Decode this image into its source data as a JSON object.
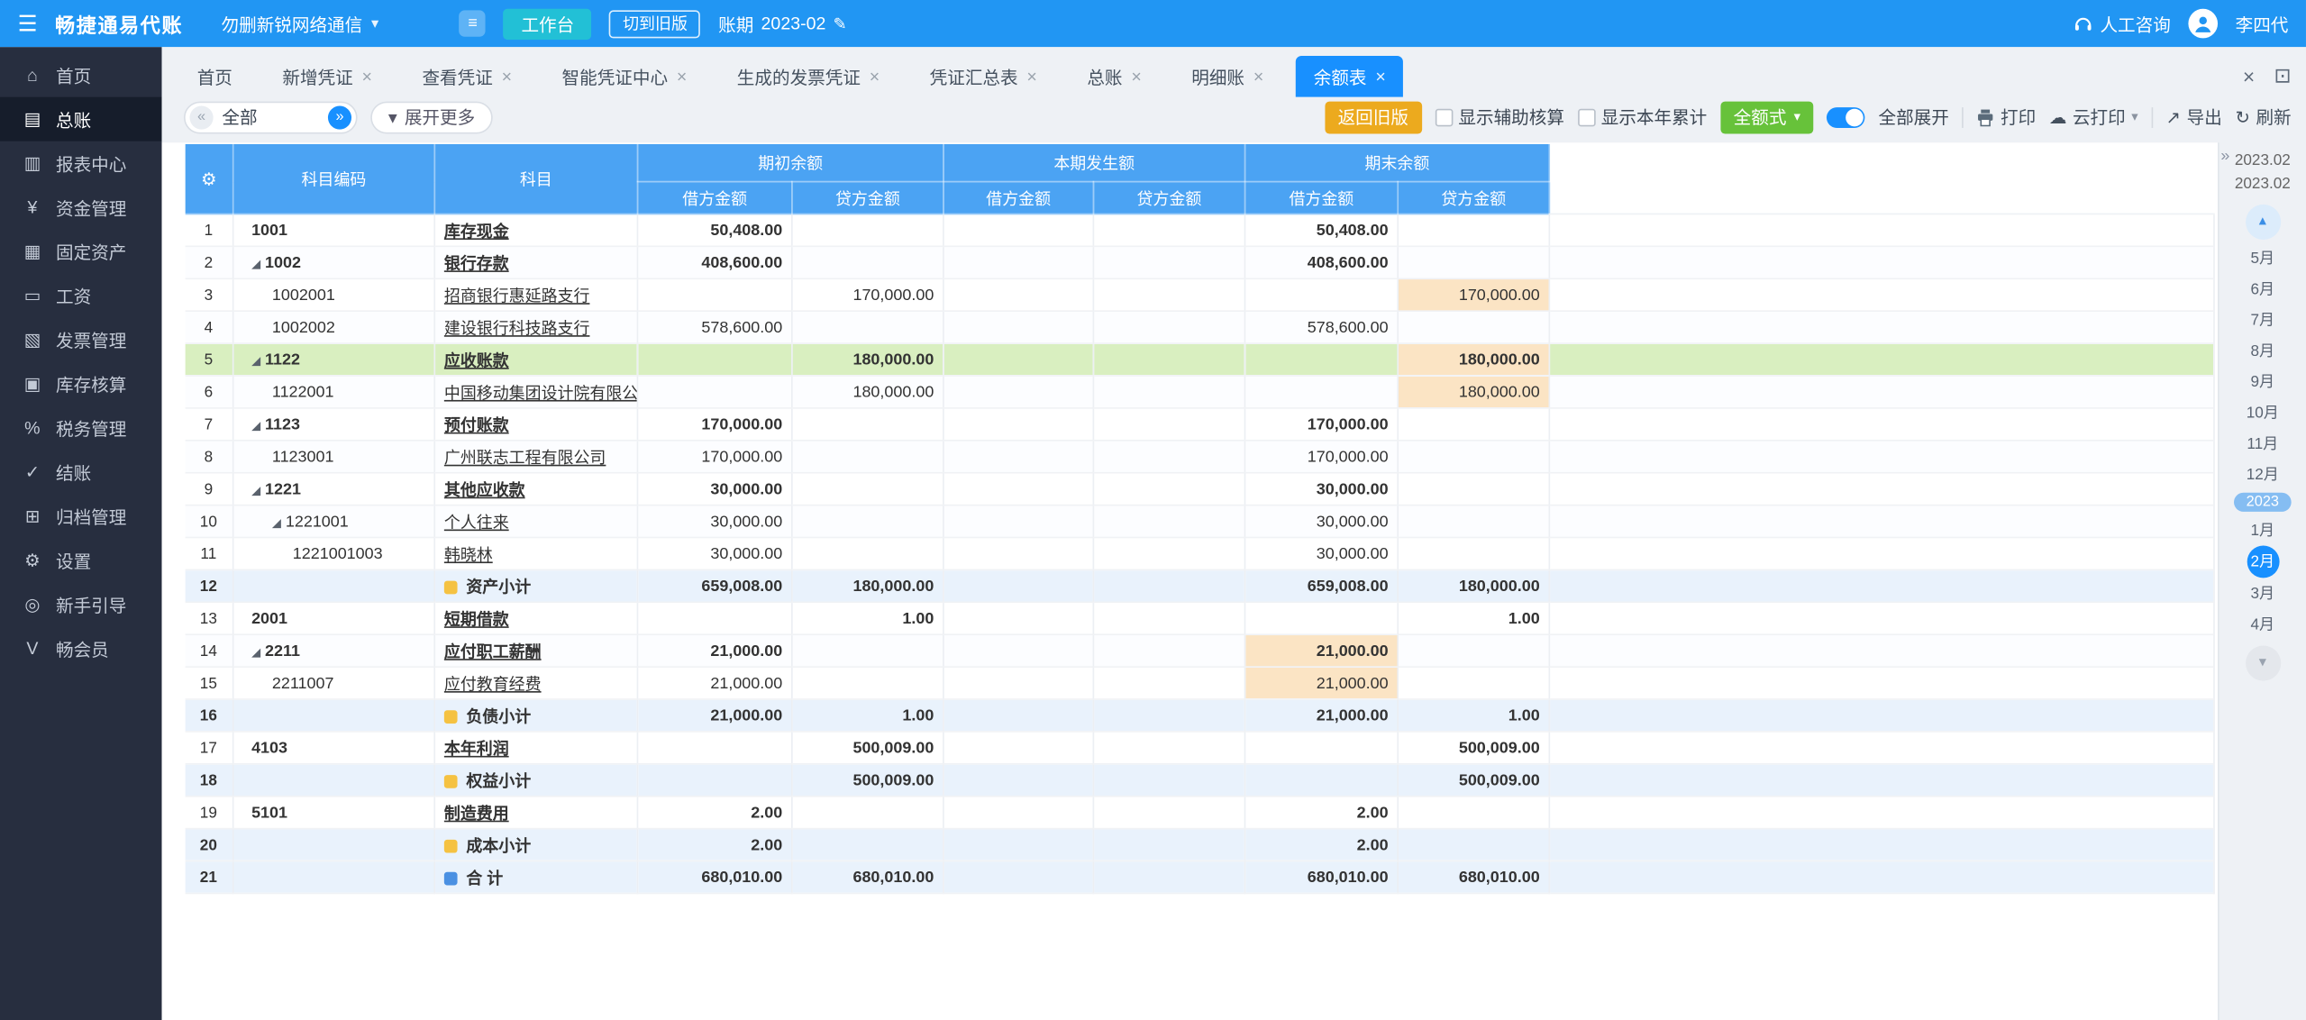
{
  "colors": {
    "topbar_blue": "#2196f3",
    "accent_blue": "#1890ff",
    "table_header_blue": "#4ba3f3",
    "green_button": "#67c23a",
    "old_version_button": "#ecaa1e",
    "workbench_button": "#22c0d6",
    "selected_row_green": "#d9efc0",
    "highlight_cell_orange": "#fbe4c4",
    "subtotal_row_blue": "#e9f2fc",
    "sidebar_dark": "#272e3f"
  },
  "icons": {
    "hamburger-icon": "☰",
    "chevron-down-icon": "▾",
    "edit-icon": "✎",
    "apps-icon": "≡",
    "home-icon": "⌂",
    "ledger-icon": "▤",
    "report-icon": "▥",
    "funds-icon": "¥",
    "assets-icon": "▦",
    "salary-icon": "▭",
    "invoice-icon": "▧",
    "inventory-icon": "▣",
    "tax-icon": "%",
    "closing-icon": "✓",
    "archive-icon": "⊞",
    "settings-icon": "⚙",
    "guide-icon": "◎",
    "member-icon": "V",
    "gear-icon": "⚙",
    "expand-triangle-icon": "◢",
    "close-icon": "×",
    "fullscreen-icon": "⊡",
    "cloud-icon": "☁",
    "export-icon": "↗",
    "refresh-icon": "↻",
    "left-circle-icon": "«",
    "right-circle-icon": "»",
    "collapse-icon": "»",
    "up-icon": "▴",
    "down-icon": "▾"
  },
  "topbar": {
    "logo": "畅捷通易代账",
    "company": "勿删新锐网络通信",
    "workbench": "工作台",
    "switch_old": "切到旧版",
    "period_label": "账期",
    "period_value": "2023-02",
    "support": "人工咨询",
    "user": "李四代"
  },
  "tabs": {
    "items": [
      {
        "label": "首页",
        "closable": false,
        "active": false
      },
      {
        "label": "新增凭证",
        "closable": true,
        "active": false
      },
      {
        "label": "查看凭证",
        "closable": true,
        "active": false
      },
      {
        "label": "智能凭证中心",
        "closable": true,
        "active": false
      },
      {
        "label": "生成的发票凭证",
        "closable": true,
        "active": false
      },
      {
        "label": "凭证汇总表",
        "closable": true,
        "active": false
      },
      {
        "label": "总账",
        "closable": true,
        "active": false
      },
      {
        "label": "明细账",
        "closable": true,
        "active": false
      },
      {
        "label": "余额表",
        "closable": true,
        "active": true
      }
    ]
  },
  "toolbar": {
    "filter_label": "全部",
    "expand_more": "展开更多",
    "return_old": "返回旧版",
    "show_aux": "显示辅助核算",
    "show_ytd": "显示本年累计",
    "amount_mode": "全额式",
    "expand_all": "全部展开",
    "print": "打印",
    "cloud_print": "云打印",
    "export": "导出",
    "refresh": "刷新"
  },
  "sidebar": {
    "items": [
      {
        "label": "首页",
        "icon": "home-icon",
        "active": false
      },
      {
        "label": "总账",
        "icon": "ledger-icon",
        "active": true
      },
      {
        "label": "报表中心",
        "icon": "report-icon",
        "active": false
      },
      {
        "label": "资金管理",
        "icon": "funds-icon",
        "active": false
      },
      {
        "label": "固定资产",
        "icon": "assets-icon",
        "active": false
      },
      {
        "label": "工资",
        "icon": "salary-icon",
        "active": false
      },
      {
        "label": "发票管理",
        "icon": "invoice-icon",
        "active": false
      },
      {
        "label": "库存核算",
        "icon": "inventory-icon",
        "active": false
      },
      {
        "label": "税务管理",
        "icon": "tax-icon",
        "active": false
      },
      {
        "label": "结账",
        "icon": "closing-icon",
        "active": false
      },
      {
        "label": "归档管理",
        "icon": "archive-icon",
        "active": false
      },
      {
        "label": "设置",
        "icon": "settings-icon",
        "active": false
      },
      {
        "label": "新手引导",
        "icon": "guide-icon",
        "active": false
      },
      {
        "label": "畅会员",
        "icon": "member-icon",
        "active": false
      }
    ]
  },
  "table": {
    "header": {
      "code": "科目编码",
      "subject": "科目",
      "groups": [
        "期初余额",
        "本期发生额",
        "期末余额"
      ],
      "debit": "借方金额",
      "credit": "贷方金额"
    },
    "rows": [
      {
        "num": 1,
        "code": "1001",
        "bold": true,
        "name": "库存现金",
        "cells": [
          "50,408.00",
          "",
          "",
          "",
          "50,408.00",
          ""
        ]
      },
      {
        "num": 2,
        "code": "1002",
        "bold": true,
        "expand": true,
        "name": "银行存款",
        "cells": [
          "408,600.00",
          "",
          "",
          "",
          "408,600.00",
          ""
        ]
      },
      {
        "num": 3,
        "code": "1002001",
        "level": 1,
        "name": "招商银行惠延路支行",
        "cells": [
          "",
          "170,000.00",
          "",
          "",
          "",
          "170,000.00"
        ],
        "hl": [
          5
        ]
      },
      {
        "num": 4,
        "code": "1002002",
        "level": 1,
        "name": "建设银行科技路支行",
        "cells": [
          "578,600.00",
          "",
          "",
          "",
          "578,600.00",
          ""
        ]
      },
      {
        "num": 5,
        "code": "1122",
        "bold": true,
        "expand": true,
        "selected": true,
        "name": "应收账款",
        "cells": [
          "",
          "180,000.00",
          "",
          "",
          "",
          "180,000.00"
        ],
        "hl": [
          5
        ]
      },
      {
        "num": 6,
        "code": "1122001",
        "level": 1,
        "name": "中国移动集团设计院有限公司划",
        "cells": [
          "",
          "180,000.00",
          "",
          "",
          "",
          "180,000.00"
        ],
        "hl": [
          5
        ]
      },
      {
        "num": 7,
        "code": "1123",
        "bold": true,
        "expand": true,
        "name": "预付账款",
        "cells": [
          "170,000.00",
          "",
          "",
          "",
          "170,000.00",
          ""
        ]
      },
      {
        "num": 8,
        "code": "1123001",
        "level": 1,
        "name": "广州联志工程有限公司",
        "cells": [
          "170,000.00",
          "",
          "",
          "",
          "170,000.00",
          ""
        ]
      },
      {
        "num": 9,
        "code": "1221",
        "bold": true,
        "expand": true,
        "name": "其他应收款",
        "cells": [
          "30,000.00",
          "",
          "",
          "",
          "30,000.00",
          ""
        ]
      },
      {
        "num": 10,
        "code": "1221001",
        "level": 1,
        "expand": true,
        "name": "个人往来",
        "cells": [
          "30,000.00",
          "",
          "",
          "",
          "30,000.00",
          ""
        ]
      },
      {
        "num": 11,
        "code": "1221001003",
        "level": 2,
        "name": "韩晓林",
        "cells": [
          "30,000.00",
          "",
          "",
          "",
          "30,000.00",
          ""
        ]
      },
      {
        "num": 12,
        "kind": "subtotal",
        "icon": "#f5c242",
        "name": "资产小计",
        "cells": [
          "659,008.00",
          "180,000.00",
          "",
          "",
          "659,008.00",
          "180,000.00"
        ]
      },
      {
        "num": 13,
        "code": "2001",
        "bold": true,
        "name": "短期借款",
        "cells": [
          "",
          "1.00",
          "",
          "",
          "",
          "1.00"
        ]
      },
      {
        "num": 14,
        "code": "2211",
        "bold": true,
        "expand": true,
        "name": "应付职工薪酬",
        "cells": [
          "21,000.00",
          "",
          "",
          "",
          "21,000.00",
          ""
        ],
        "hl": [
          4
        ]
      },
      {
        "num": 15,
        "code": "2211007",
        "level": 1,
        "name": "应付教育经费",
        "cells": [
          "21,000.00",
          "",
          "",
          "",
          "21,000.00",
          ""
        ],
        "hl": [
          4
        ]
      },
      {
        "num": 16,
        "kind": "subtotal",
        "icon": "#f5c242",
        "name": "负债小计",
        "cells": [
          "21,000.00",
          "1.00",
          "",
          "",
          "21,000.00",
          "1.00"
        ]
      },
      {
        "num": 17,
        "code": "4103",
        "bold": true,
        "name": "本年利润",
        "cells": [
          "",
          "500,009.00",
          "",
          "",
          "",
          "500,009.00"
        ]
      },
      {
        "num": 18,
        "kind": "subtotal",
        "icon": "#f5c242",
        "name": "权益小计",
        "cells": [
          "",
          "500,009.00",
          "",
          "",
          "",
          "500,009.00"
        ]
      },
      {
        "num": 19,
        "code": "5101",
        "bold": true,
        "name": "制造费用",
        "cells": [
          "2.00",
          "",
          "",
          "",
          "2.00",
          ""
        ]
      },
      {
        "num": 20,
        "kind": "subtotal",
        "icon": "#f5c242",
        "name": "成本小计",
        "cells": [
          "2.00",
          "",
          "",
          "",
          "2.00",
          ""
        ]
      },
      {
        "num": 21,
        "kind": "total",
        "icon": "#4a90e2",
        "name": "合  计",
        "cells": [
          "680,010.00",
          "680,010.00",
          "",
          "",
          "680,010.00",
          "680,010.00"
        ]
      }
    ]
  },
  "datebar": {
    "period_line1": "2023.02",
    "period_line2": "2023.02",
    "months_before": [
      "5月",
      "6月",
      "7月",
      "8月",
      "9月",
      "10月",
      "11月",
      "12月"
    ],
    "year": "2023",
    "months_after": [
      "1月",
      "2月",
      "3月",
      "4月"
    ],
    "selected_month": "2月"
  }
}
